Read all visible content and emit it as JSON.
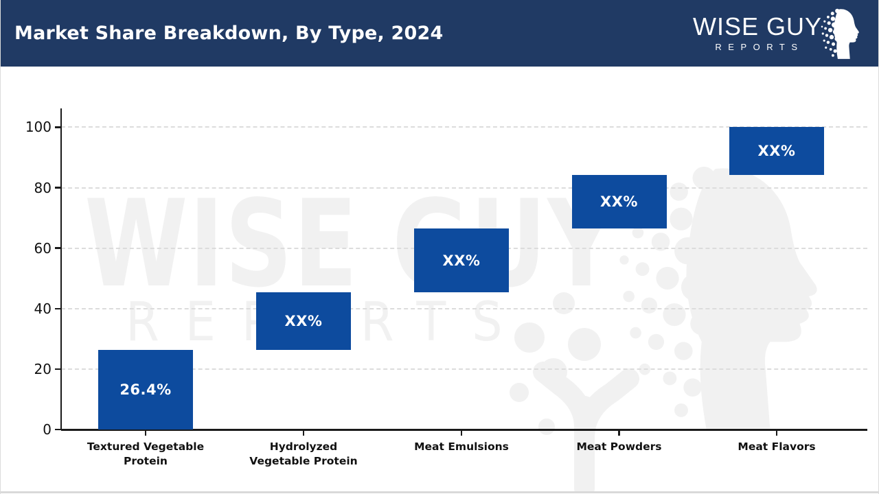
{
  "header": {
    "title": "Market Share Breakdown, By Type, 2024",
    "logo": {
      "line1": "WISE GUY",
      "line2": "REPORTS"
    }
  },
  "watermark": {
    "line1": "WISE GUY",
    "line2": "REPORTS"
  },
  "colors": {
    "header_bg": "#203a64",
    "bar": "#0d4b9e",
    "grid": "#dcdcdc",
    "axis": "#1a1a1a",
    "bar_label": "#ffffff",
    "watermark": "#f1f1f1"
  },
  "chart_data": {
    "type": "bar",
    "subtype": "waterfall",
    "title": "Market Share Breakdown, By Type, 2024",
    "categories": [
      "Textured Vegetable Protein",
      "Hydrolyzed Vegetable Protein",
      "Meat Emulsions",
      "Meat Powders",
      "Meat Flavors"
    ],
    "category_lines": [
      [
        "Textured Vegetable",
        "Protein"
      ],
      [
        "Hydrolyzed",
        "Vegetable Protein"
      ],
      [
        "Meat Emulsions"
      ],
      [
        "Meat Powders"
      ],
      [
        "Meat Flavors"
      ]
    ],
    "bars": [
      {
        "label": "26.4%",
        "start": 0,
        "end": 26.4
      },
      {
        "label": "XX%",
        "start": 26.4,
        "end": 45.5
      },
      {
        "label": "XX%",
        "start": 45.5,
        "end": 66.4
      },
      {
        "label": "XX%",
        "start": 66.4,
        "end": 84.3
      },
      {
        "label": "XX%",
        "start": 84.3,
        "end": 100
      }
    ],
    "yticks": [
      0,
      20,
      40,
      60,
      80,
      100
    ],
    "ylim": [
      0,
      106
    ],
    "xlabel": "",
    "ylabel": "",
    "grid": "horizontal-dashed",
    "legend": "none"
  }
}
